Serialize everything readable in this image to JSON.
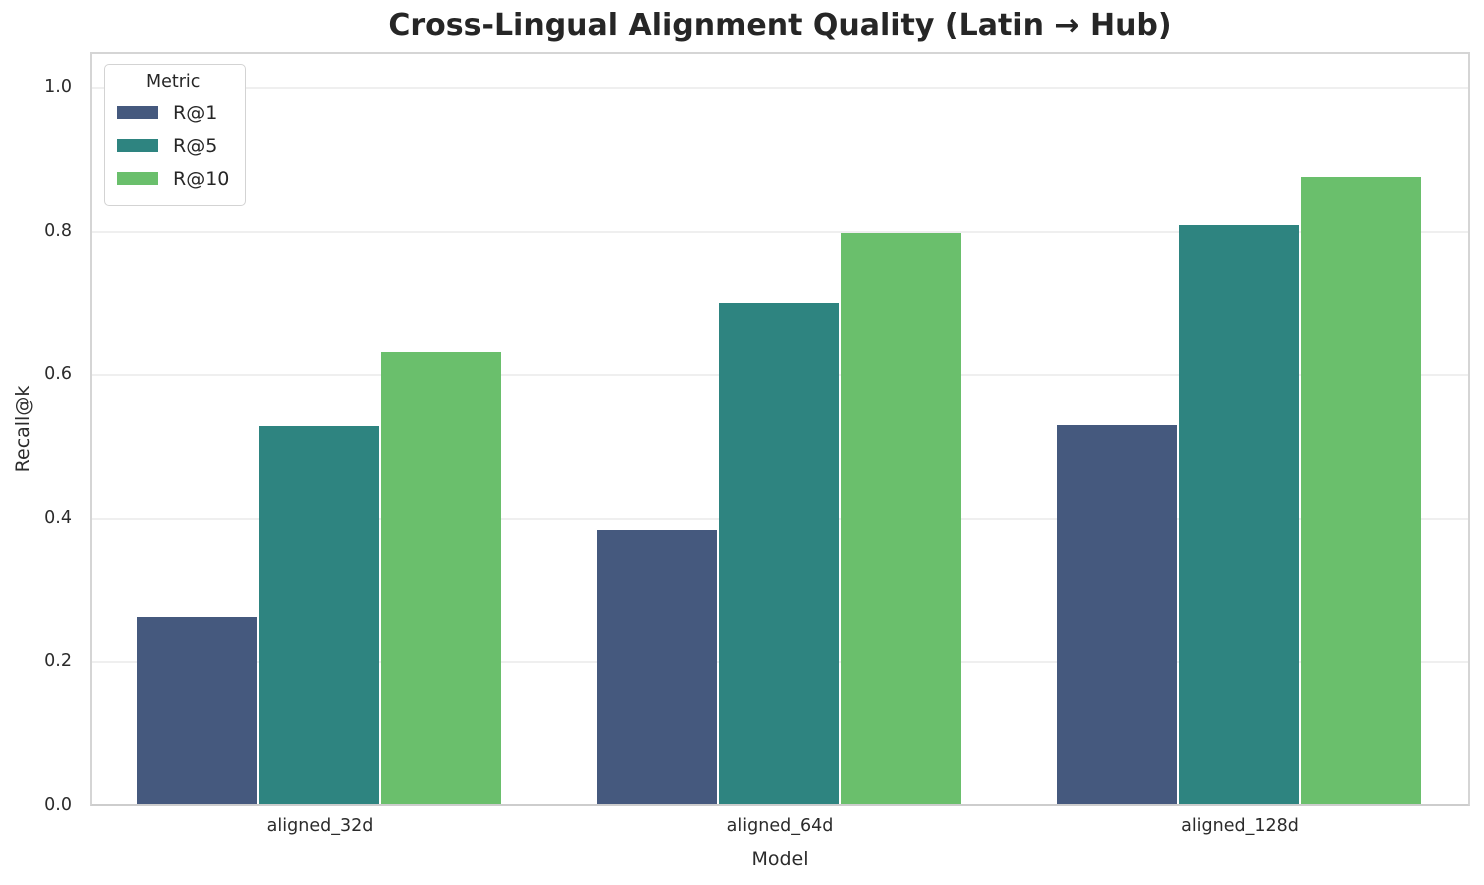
{
  "title": "Cross-Lingual Alignment Quality (Latin → Hub)",
  "legend": {
    "title": "Metric"
  },
  "colors": {
    "r_at_1": "#45597e",
    "r_at_5": "#2e8480",
    "r_at_10": "#6abf6c",
    "title_text": "#262626",
    "tick_text": "#2b2b2b",
    "grid": "#efefef",
    "spine": "#d5d5d5",
    "background": "#ffffff"
  },
  "chart_data": {
    "type": "bar",
    "title": "Cross-Lingual Alignment Quality (Latin → Hub)",
    "xlabel": "Model",
    "ylabel": "Recall@k",
    "categories": [
      "aligned_32d",
      "aligned_64d",
      "aligned_128d"
    ],
    "series": [
      {
        "name": "R@1",
        "color": "#45597e",
        "values": [
          0.26,
          0.382,
          0.528
        ]
      },
      {
        "name": "R@5",
        "color": "#2e8480",
        "values": [
          0.527,
          0.698,
          0.807
        ]
      },
      {
        "name": "R@10",
        "color": "#6abf6c",
        "values": [
          0.63,
          0.795,
          0.873
        ]
      }
    ],
    "ylim": [
      0,
      1.05
    ],
    "yticks": [
      "0.0",
      "0.2",
      "0.4",
      "0.6",
      "0.8",
      "1.0"
    ],
    "grid": true,
    "legend_title": "Metric",
    "legend_position": "upper-left"
  }
}
